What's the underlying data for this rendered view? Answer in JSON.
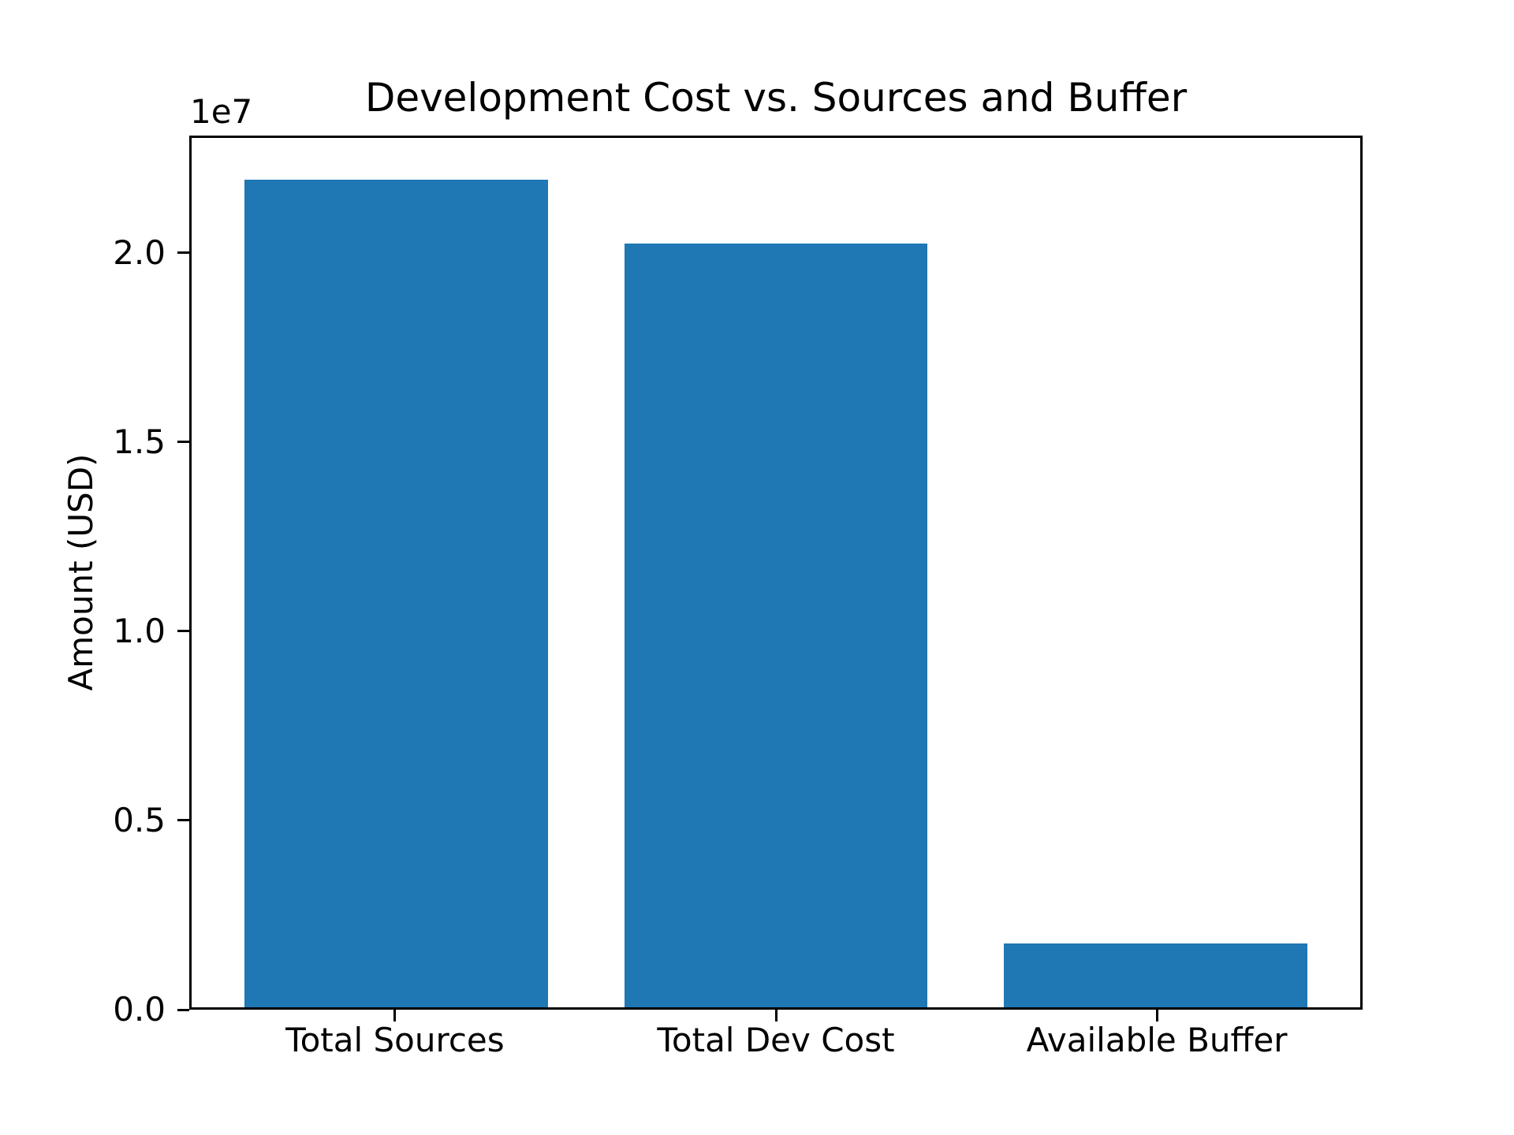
{
  "chart_data": {
    "type": "bar",
    "title": "Development Cost vs. Sources and Buffer",
    "xlabel": "",
    "ylabel": "Amount (USD)",
    "offset_text": "1e7",
    "categories": [
      "Total Sources",
      "Total Dev Cost",
      "Available Buffer"
    ],
    "values": [
      22000000,
      20300000,
      1700000
    ],
    "ylim": [
      0,
      23100000
    ],
    "xlim": [
      -0.54,
      2.54
    ],
    "bar_width_units": 0.8,
    "yticks": [
      0,
      5000000,
      10000000,
      15000000,
      20000000
    ],
    "ytick_labels": [
      "0.0",
      "0.5",
      "1.0",
      "1.5",
      "2.0"
    ],
    "grid": false,
    "legend": "none",
    "bar_color": "#1f77b4",
    "spine_color": "#000000",
    "background_color": "#ffffff"
  }
}
